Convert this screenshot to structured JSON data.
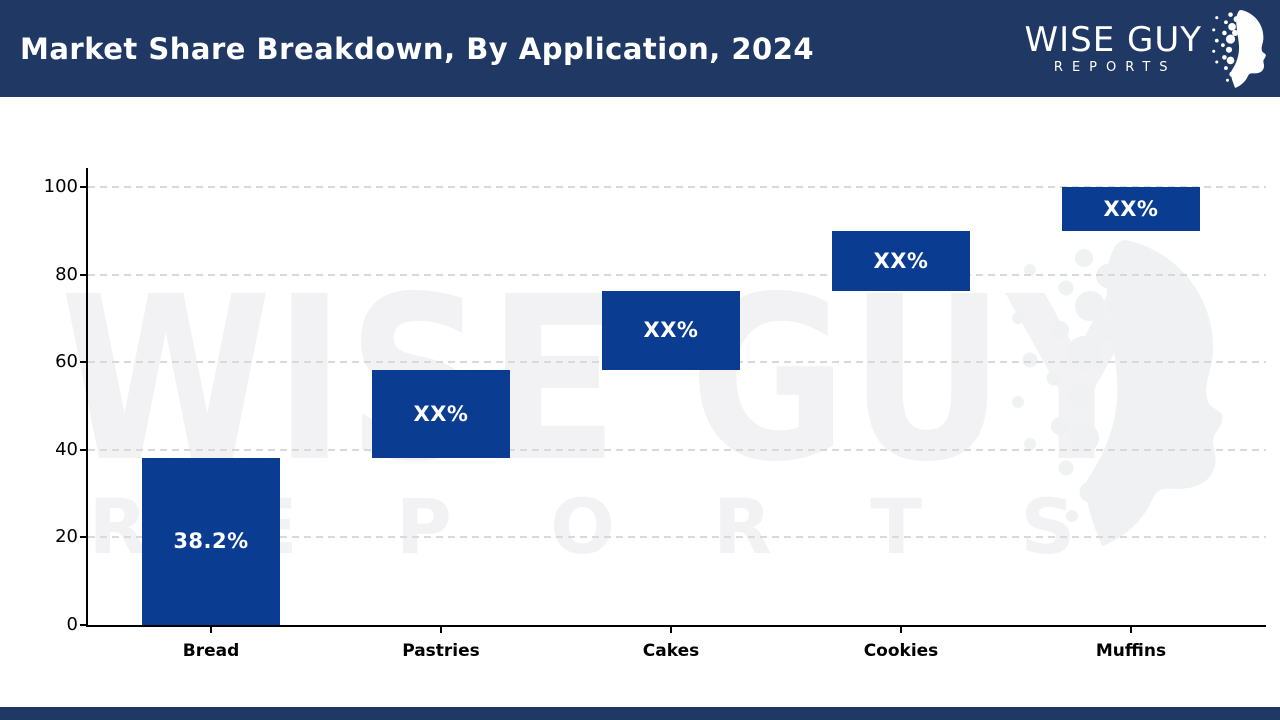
{
  "header": {
    "title": "Market Share Breakdown, By Application, 2024"
  },
  "logo": {
    "line1": "WISE GUY",
    "line2": "REPORTS"
  },
  "watermark": {
    "line1": "WISE GUY",
    "line2": "R E P O R T S"
  },
  "colors": {
    "header_bg": "#1f3864",
    "footer_bg": "#1f3864",
    "bar": "#0a3d91",
    "bar_label": "#ffffff",
    "grid": "#d9d9d9",
    "axis": "#000000",
    "tick_text": "#000000",
    "watermark_text": "#f2f2f4",
    "watermark_face": "#eff1f3",
    "logo_color": "#ffffff"
  },
  "chart_data": {
    "type": "bar",
    "subtype": "waterfall",
    "title": "Market Share Breakdown, By Application, 2024",
    "categories": [
      "Bread",
      "Pastries",
      "Cakes",
      "Cookies",
      "Muffins"
    ],
    "segments": [
      {
        "category": "Bread",
        "start": 0,
        "end": 38.2,
        "value": 38.2,
        "label": "38.2%"
      },
      {
        "category": "Pastries",
        "start": 38.2,
        "end": 58.2,
        "value": 20.0,
        "label": "XX%"
      },
      {
        "category": "Cakes",
        "start": 58.2,
        "end": 76.3,
        "value": 18.1,
        "label": "XX%"
      },
      {
        "category": "Cookies",
        "start": 76.3,
        "end": 90.0,
        "value": 13.7,
        "label": "XX%"
      },
      {
        "category": "Muffins",
        "start": 90.0,
        "end": 100.0,
        "value": 10.0,
        "label": "XX%"
      }
    ],
    "xlabel": "",
    "ylabel": "",
    "ylim": [
      0,
      104
    ],
    "yticks": [
      0,
      20,
      40,
      60,
      80,
      100
    ],
    "grid": "horizontal-dashed",
    "legend": "none"
  }
}
